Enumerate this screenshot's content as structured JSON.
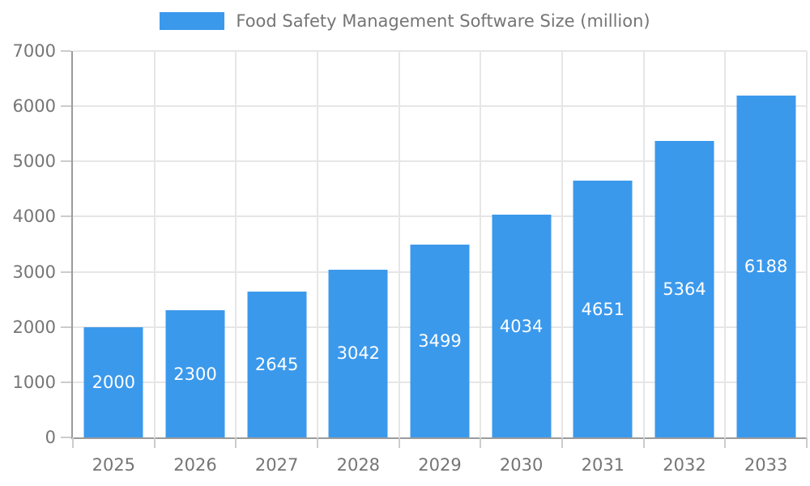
{
  "legend": {
    "label": "Food Safety Management Software Size (million)",
    "swatch_color": "#3b99ec"
  },
  "chart_data": {
    "type": "bar",
    "title": "Food Safety Management Software Size (million)",
    "categories": [
      "2025",
      "2026",
      "2027",
      "2028",
      "2029",
      "2030",
      "2031",
      "2032",
      "2033"
    ],
    "series": [
      {
        "name": "Food Safety Management Software Size (million)",
        "values": [
          2000,
          2300,
          2645,
          3042,
          3499,
          4034,
          4651,
          5364,
          6188
        ]
      }
    ],
    "xlabel": "",
    "ylabel": "",
    "ylim": [
      0,
      7000
    ],
    "yticks": [
      0,
      1000,
      2000,
      3000,
      4000,
      5000,
      6000,
      7000
    ],
    "grid": true,
    "legend_position": "top",
    "bar_labels_inside": true
  },
  "colors": {
    "bar": "#3b99ec",
    "grid": "#e6e6e6",
    "tick": "#cccccc",
    "axis": "#9b9b9b",
    "tick_text": "#757575",
    "bar_label_text": "#ffffff",
    "background": "#ffffff"
  }
}
